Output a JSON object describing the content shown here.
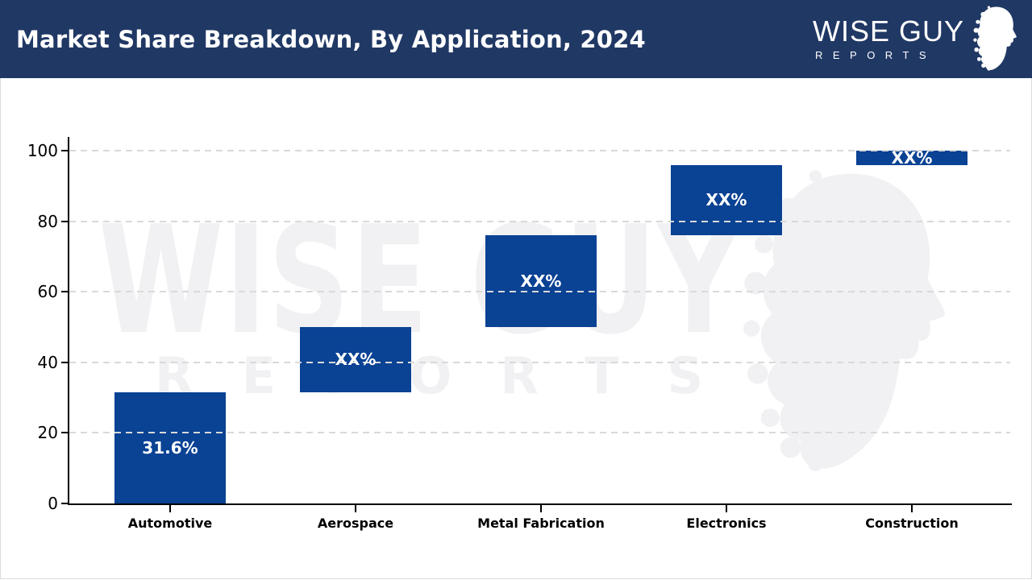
{
  "header": {
    "title": "Market Share Breakdown, By Application, 2024",
    "brand": {
      "line1": "WISE GUY",
      "line2": "REPORTS"
    }
  },
  "watermark": {
    "line1": "WISE GUY",
    "line2": "REPORTS"
  },
  "chart_data": {
    "type": "bar",
    "subtype": "waterfall",
    "title": "Market Share Breakdown, By Application, 2024",
    "categories": [
      "Automotive",
      "Aerospace",
      "Metal Fabrication",
      "Electronics",
      "Construction"
    ],
    "segments": [
      {
        "category": "Automotive",
        "start": 0,
        "end": 31.6,
        "label": "31.6%"
      },
      {
        "category": "Aerospace",
        "start": 31.6,
        "end": 50,
        "label": "XX%"
      },
      {
        "category": "Metal Fabrication",
        "start": 50,
        "end": 76,
        "label": "XX%"
      },
      {
        "category": "Electronics",
        "start": 76,
        "end": 96,
        "label": "XX%"
      },
      {
        "category": "Construction",
        "start": 96,
        "end": 100,
        "label": "XX%"
      }
    ],
    "yticks": [
      0,
      20,
      40,
      60,
      80,
      100
    ],
    "ylim": [
      0,
      104
    ],
    "xlabel": "",
    "ylabel": "",
    "grid": {
      "horizontal": true,
      "style": "dashed"
    },
    "legend": null,
    "colors": {
      "bar": "#0a4294",
      "bar_label": "#ffffff",
      "header_bg": "#203864",
      "grid": "#d9d9d9",
      "axis": "#000000",
      "watermark": "#f1f1f4"
    }
  }
}
